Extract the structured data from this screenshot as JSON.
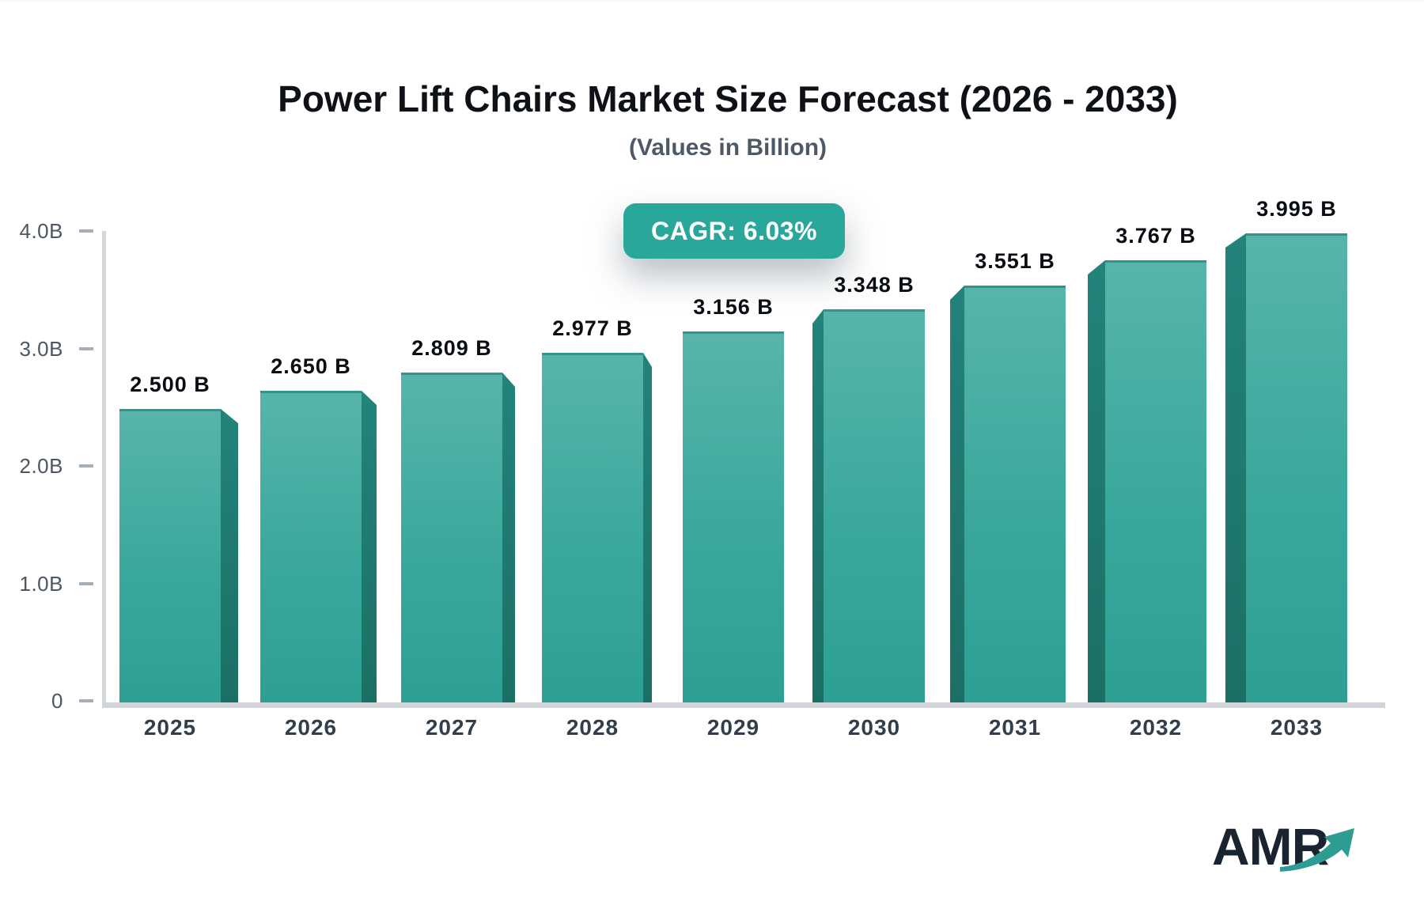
{
  "title": "Power Lift Chairs Market Size Forecast (2026 - 2033)",
  "subtitle": "(Values in Billion)",
  "badge": {
    "label": "CAGR: 6.03%",
    "color": "#2aa79b"
  },
  "logo": {
    "text": "AMR",
    "arrow_color": "#2d9c92"
  },
  "chart_data": {
    "type": "bar",
    "title": "Power Lift Chairs Market Size Forecast (2026 - 2033)",
    "subtitle": "(Values in Billion)",
    "xlabel": "",
    "ylabel": "",
    "categories": [
      "2025",
      "2026",
      "2027",
      "2028",
      "2029",
      "2030",
      "2031",
      "2032",
      "2033"
    ],
    "values": [
      2.5,
      2.65,
      2.809,
      2.977,
      3.156,
      3.348,
      3.551,
      3.767,
      3.995
    ],
    "bar_labels": [
      "2.500 B",
      "2.650 B",
      "2.809 B",
      "2.977 B",
      "3.156 B",
      "3.348 B",
      "3.551 B",
      "3.767 B",
      "3.995 B"
    ],
    "y_ticks": [
      "0",
      "1.0B",
      "2.0B",
      "3.0B",
      "4.0B"
    ],
    "ylim": [
      0,
      4.0
    ],
    "grid": false,
    "legend": false,
    "annotation": "CAGR: 6.03%",
    "bar_color_top": "#58b4aa",
    "bar_color_bottom": "#2da093",
    "bar_side_color": "#1f7d72",
    "axis_color": "#d2d6da",
    "label_color": "#323e4b"
  }
}
